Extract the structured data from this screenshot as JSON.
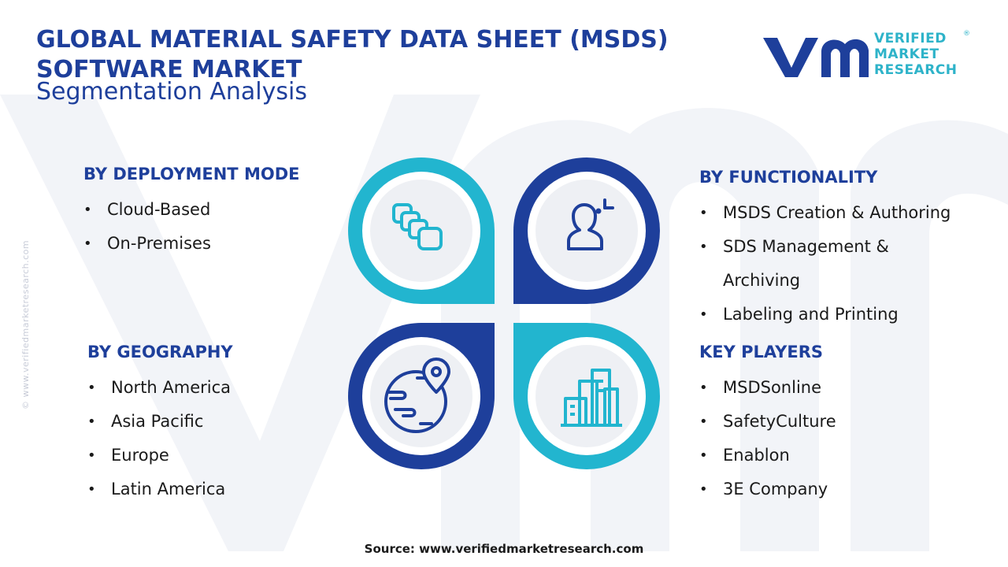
{
  "header": {
    "title": "GLOBAL MATERIAL SAFETY DATA SHEET (MSDS) SOFTWARE MARKET",
    "subtitle": "Segmentation Analysis"
  },
  "logo": {
    "lines": [
      "VERIFIED",
      "MARKET",
      "RESEARCH"
    ],
    "registered": "®"
  },
  "side_text": "© www.verifiedmarketresearch.com",
  "segments": {
    "deployment": {
      "title": "BY DEPLOYMENT MODE",
      "items": [
        "Cloud-Based",
        "On-Premises"
      ]
    },
    "functionality": {
      "title": "BY FUNCTIONALITY",
      "items": [
        "MSDS Creation & Authoring",
        "SDS Management &",
        "Archiving",
        "Labeling and Printing"
      ]
    },
    "geography": {
      "title": "BY GEOGRAPHY",
      "items": [
        "North America",
        "Asia Pacific",
        "Europe",
        "Latin America"
      ]
    },
    "key_players": {
      "title": "KEY PLAYERS",
      "items": [
        "MSDSonline",
        "SafetyCulture",
        "Enablon",
        "3E Company"
      ]
    }
  },
  "icons": {
    "top_left": "stacked-cards-icon",
    "top_right": "user-ai-icon",
    "bottom_left": "globe-location-icon",
    "bottom_right": "city-buildings-icon"
  },
  "colors": {
    "navy": "#1e3f9b",
    "teal": "#22b5cf",
    "circle_fill": "#eef0f4",
    "watermark": "#f2f4f8"
  },
  "footer": {
    "source": "Source: www.verifiedmarketresearch.com"
  }
}
